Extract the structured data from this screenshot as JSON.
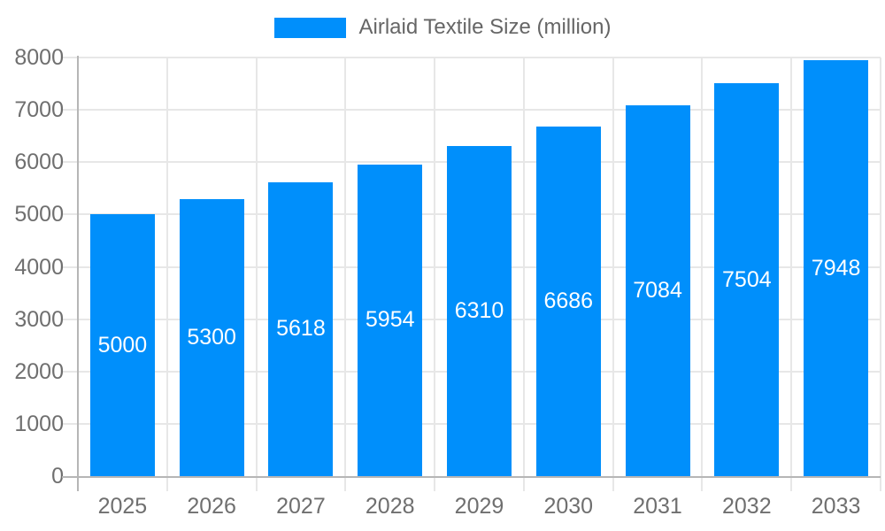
{
  "chart_data": {
    "type": "bar",
    "title": "Airlaid Textile Size (million)",
    "categories": [
      "2025",
      "2026",
      "2027",
      "2028",
      "2029",
      "2030",
      "2031",
      "2032",
      "2033"
    ],
    "series": [
      {
        "name": "Airlaid Textile Size (million)",
        "values": [
          5000,
          5300,
          5618,
          5954,
          6310,
          6686,
          7084,
          7504,
          7948
        ]
      }
    ],
    "bar_value_labels": [
      "5000",
      "5300",
      "5618",
      "5954",
      "6310",
      "6686",
      "7084",
      "7504",
      "7948"
    ],
    "xlabel": "",
    "ylabel": "",
    "ylim": [
      0,
      8000
    ],
    "y_tick_step": 1000,
    "y_tick_labels": [
      "0",
      "1000",
      "2000",
      "3000",
      "4000",
      "5000",
      "6000",
      "7000",
      "8000"
    ],
    "grid": true,
    "legend_position": "top",
    "colors": {
      "bar": "#008FFB",
      "gridline": "#e7e7e7",
      "axis_line": "#b6b6b6",
      "tick_label": "#6f6f6f",
      "bar_label": "#ffffff",
      "legend_text": "#666666"
    }
  }
}
